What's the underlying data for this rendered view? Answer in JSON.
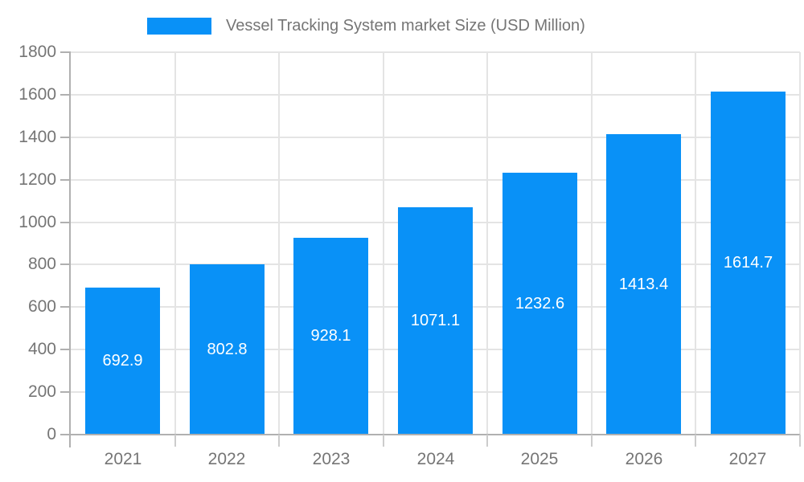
{
  "chart_data": {
    "type": "bar",
    "legend_label": "Vessel Tracking System market Size (USD Million)",
    "legend_position": "top",
    "categories": [
      "2021",
      "2022",
      "2023",
      "2024",
      "2025",
      "2026",
      "2027"
    ],
    "values": [
      692.9,
      802.8,
      928.1,
      1071.1,
      1232.6,
      1413.4,
      1614.7
    ],
    "value_labels": [
      "692.9",
      "802.8",
      "928.1",
      "1071.1",
      "1232.6",
      "1413.4",
      "1614.7"
    ],
    "xlabel": "",
    "ylabel": "",
    "ylim": [
      0,
      1800
    ],
    "ytick_step": 200,
    "grid": true,
    "colors": {
      "bar": "#0991f7",
      "axis_text": "#757575",
      "legend_text": "#757575",
      "value_text": "#ffffff",
      "grid": "#e4e4e4",
      "axis_line": "#b0b0b0",
      "tick": "#cccccc",
      "background": "#ffffff"
    }
  }
}
